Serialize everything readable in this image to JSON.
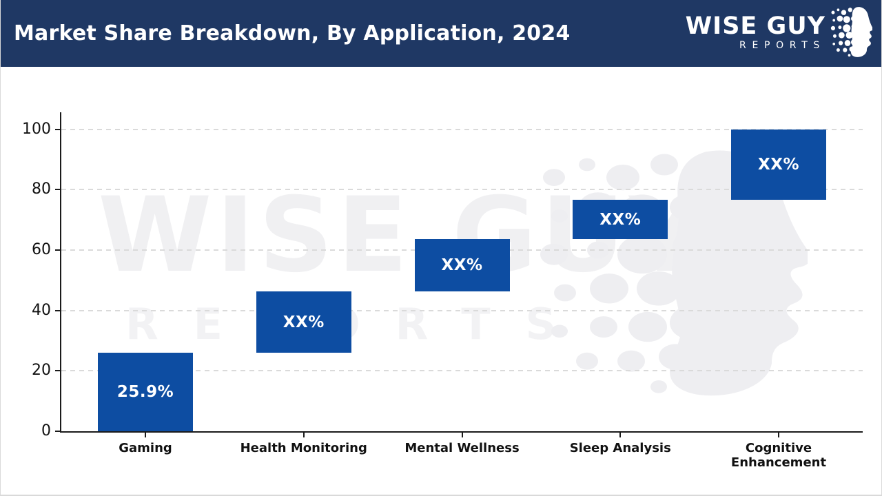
{
  "page": {
    "bg": "#ffffff",
    "border_color": "#d9d9d9"
  },
  "header": {
    "bg": "#1f3864",
    "title": "Market Share Breakdown, By Application, 2024",
    "logo": {
      "wordmark": "WISE GUY",
      "subtext": "REPORTS"
    }
  },
  "watermark": {
    "wordmark": "WISE GUY",
    "subtext": "REPORTS"
  },
  "chart_data": {
    "type": "bar",
    "subtype": "waterfall",
    "title": "Market Share Breakdown, By Application, 2024",
    "categories": [
      "Gaming",
      "Health Monitoring",
      "Mental Wellness",
      "Sleep Analysis",
      "Cognitive Enhancement"
    ],
    "bars": [
      {
        "category": "Gaming",
        "start": 0,
        "end": 25.9,
        "label": "25.9%"
      },
      {
        "category": "Health Monitoring",
        "start": 25.9,
        "end": 46.3,
        "label": "XX%"
      },
      {
        "category": "Mental Wellness",
        "start": 46.3,
        "end": 63.6,
        "label": "XX%"
      },
      {
        "category": "Sleep Analysis",
        "start": 63.6,
        "end": 76.6,
        "label": "XX%"
      },
      {
        "category": "Cognitive Enhancement",
        "start": 76.6,
        "end": 100,
        "label": "XX%"
      }
    ],
    "xlabel": "",
    "ylabel": "",
    "ylim": [
      0,
      100
    ],
    "yticks": [
      0,
      20,
      40,
      60,
      80,
      100
    ],
    "grid": "horizontal-dashed",
    "legend": "none",
    "bar_color": "#0d4da2",
    "bar_label_color": "#ffffff",
    "axis_color": "#1a1a1a",
    "gridline_color": "#dadada"
  }
}
